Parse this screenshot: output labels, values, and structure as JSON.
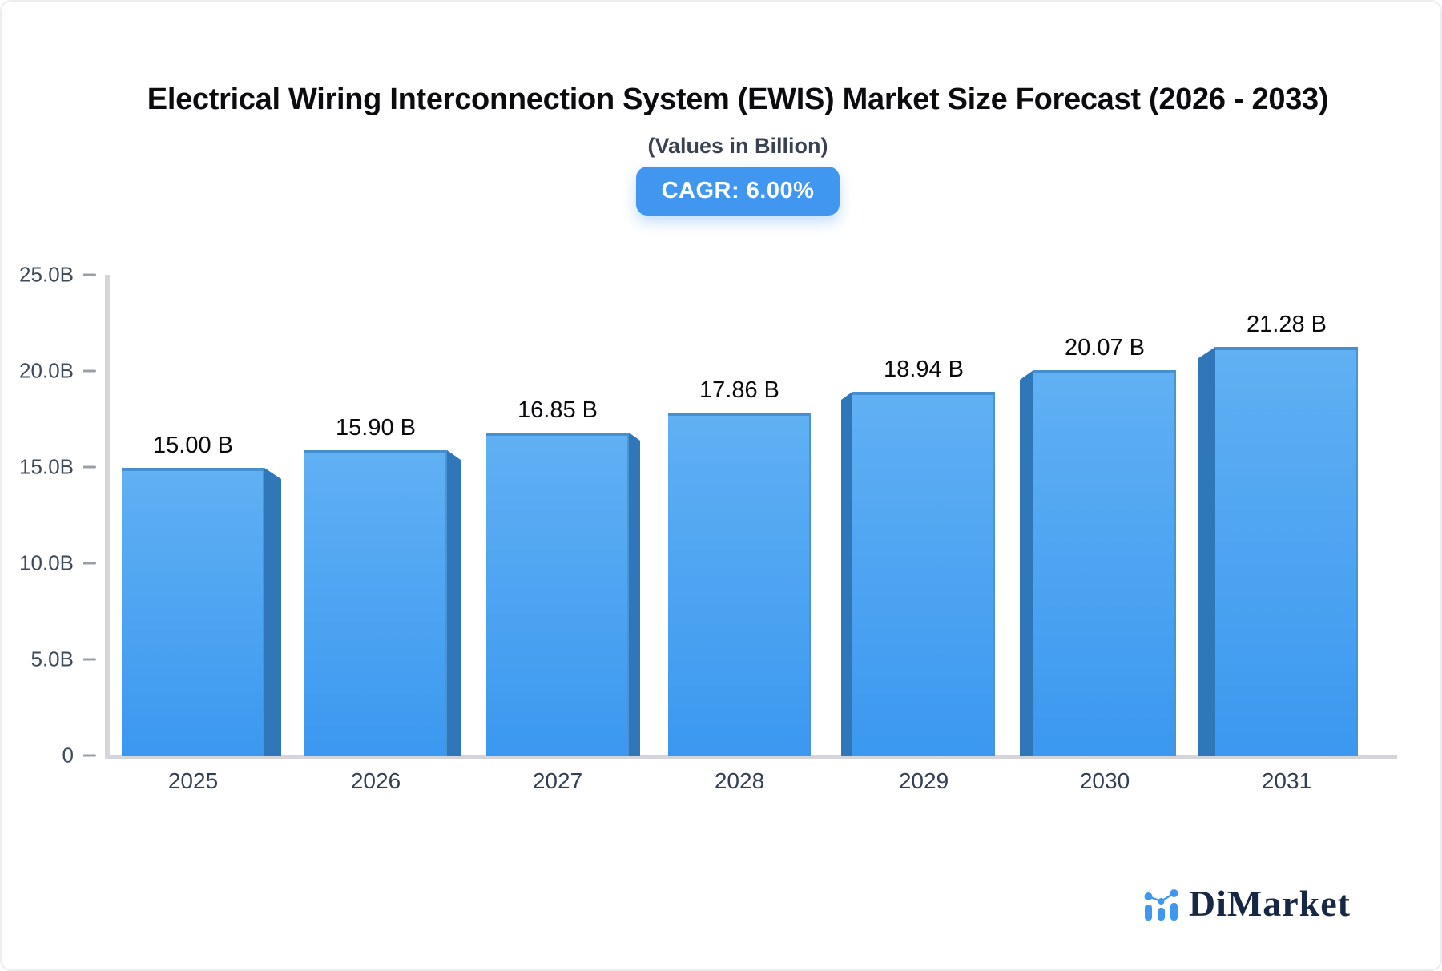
{
  "header": {
    "title": "Electrical Wiring Interconnection System (EWIS) Market Size Forecast (2026 - 2033)",
    "subtitle": "(Values in Billion)",
    "cagr_badge": "CAGR: 6.00%"
  },
  "chart_data": {
    "type": "bar",
    "title": "Electrical Wiring Interconnection System (EWIS) Market Size Forecast (2026 - 2033)",
    "subtitle": "(Values in Billion)",
    "cagr": "6.00%",
    "unit": "Billion USD",
    "categories": [
      "2025",
      "2026",
      "2027",
      "2028",
      "2029",
      "2030",
      "2031"
    ],
    "values": [
      15.0,
      15.9,
      16.85,
      17.86,
      18.94,
      20.07,
      21.28
    ],
    "value_labels": [
      "15.00 B",
      "15.90 B",
      "16.85 B",
      "17.86 B",
      "18.94 B",
      "20.07 B",
      "21.28 B"
    ],
    "ylim": [
      0,
      25
    ],
    "y_ticks": [
      0,
      5,
      10,
      15,
      20,
      25
    ],
    "y_tick_labels": [
      "0",
      "5.0B",
      "10.0B",
      "15.0B",
      "20.0B",
      "25.0B"
    ],
    "grid": false,
    "legend": false,
    "bar_style": "3d-perspective"
  },
  "colors": {
    "bar_face_top": "#60b0f3",
    "bar_face_bottom": "#3b98f0",
    "bar_side": "#2f77b8",
    "bar_top_border": "#4690cf",
    "bar_right_border": "#4b94d2",
    "badge_bg": "#4197f0",
    "badge_text": "#ffffff",
    "axis_line": "#d4d5da",
    "tick_dash": "#999fa8",
    "y_label": "#3e4959",
    "x_label": "#333f54",
    "value_label": "#0a0a0c",
    "logo_text": "#172844",
    "logo_accent": "#3f97ef"
  },
  "logo": {
    "text": "DiMarket",
    "icon": "mini-bar-chart-icon"
  }
}
